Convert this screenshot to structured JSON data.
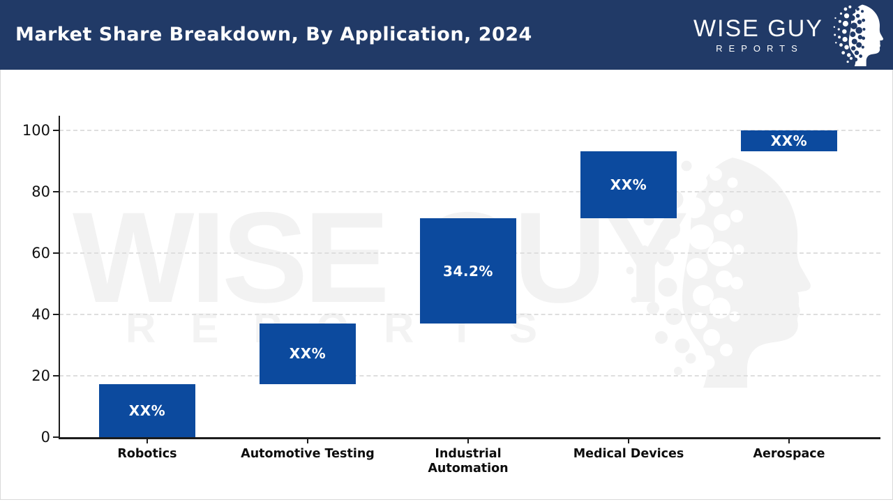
{
  "header": {
    "title": "Market Share Breakdown, By Application, 2024"
  },
  "logo": {
    "line1": "WISE GUY",
    "line2": "REPORTS"
  },
  "watermark": {
    "line1": "WISE GUY",
    "line2": "REPORTS"
  },
  "colors": {
    "header_bg": "#213a67",
    "bar": "#0c4a9e",
    "axis": "#1c1c1c",
    "grid": "#dedede",
    "bar_label": "#ffffff",
    "watermark": "#f2f2f2"
  },
  "chart_data": {
    "type": "bar",
    "subtype": "waterfall",
    "title": "Market Share Breakdown, By Application, 2024",
    "categories": [
      "Robotics",
      "Automotive Testing",
      "Industrial\nAutomation",
      "Medical Devices",
      "Aerospace"
    ],
    "segments": [
      {
        "category": "Robotics",
        "start": 0,
        "end": 17.3,
        "label": "XX%"
      },
      {
        "category": "Automotive Testing",
        "start": 17.3,
        "end": 37.1,
        "label": "XX%"
      },
      {
        "category": "Industrial Automation",
        "start": 37.1,
        "end": 71.3,
        "label": "34.2%"
      },
      {
        "category": "Medical Devices",
        "start": 71.3,
        "end": 93.2,
        "label": "XX%"
      },
      {
        "category": "Aerospace",
        "start": 93.2,
        "end": 100,
        "label": "XX%"
      }
    ],
    "yticks": [
      0,
      20,
      40,
      60,
      80,
      100
    ],
    "ylim": [
      0,
      104.5
    ],
    "xlabel": "",
    "ylabel": "",
    "grid": "horizontal-dashed",
    "legend": "none",
    "bar_color": "#0c4a9e",
    "value_label_color": "#ffffff"
  }
}
